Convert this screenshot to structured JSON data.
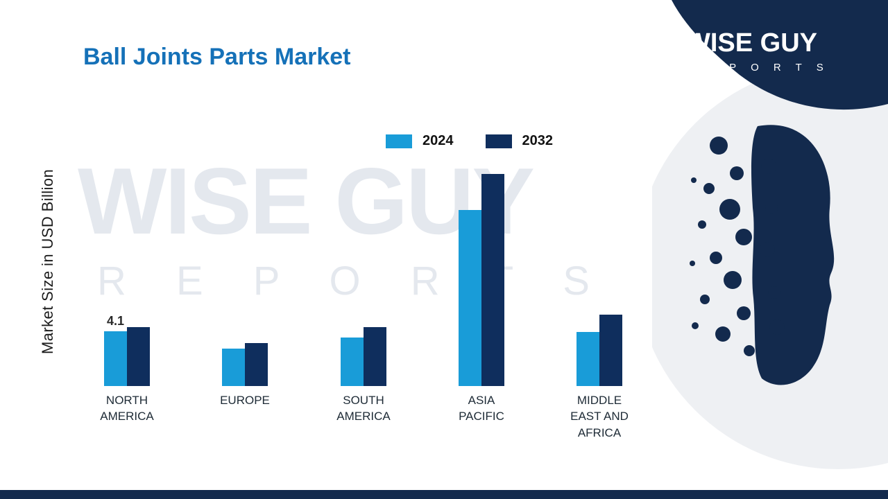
{
  "page": {
    "title": "Ball Joints Parts Market"
  },
  "colors": {
    "title": "#1571b8",
    "footer": "#132a4d",
    "corner": "#132a4d",
    "watermark": "#e4e8ee",
    "bubble": "#eef0f3"
  },
  "logo": {
    "line1": "WISE GUY",
    "line2": "R E P O R T S"
  },
  "watermark": {
    "line1": "WISE GUY",
    "line2": "R E P O R T S"
  },
  "chart_data": {
    "type": "bar",
    "title": "Ball Joints Parts Market",
    "xlabel": "",
    "ylabel": "Market Size in USD Billion",
    "ylim": [
      0,
      16
    ],
    "grid": false,
    "legend_position": "top",
    "categories": [
      "NORTH AMERICA",
      "EUROPE",
      "SOUTH AMERICA",
      "ASIA PACIFIC",
      "MIDDLE EAST AND AFRICA"
    ],
    "series": [
      {
        "name": "2024",
        "color": "#199cd8",
        "values": [
          4.1,
          2.8,
          3.6,
          13.1,
          4.0
        ]
      },
      {
        "name": "2032",
        "color": "#0f2e5d",
        "values": [
          4.4,
          3.2,
          4.4,
          15.8,
          5.3
        ]
      }
    ],
    "data_labels": [
      {
        "series": "2024",
        "category": "NORTH AMERICA",
        "value": "4.1"
      }
    ]
  }
}
